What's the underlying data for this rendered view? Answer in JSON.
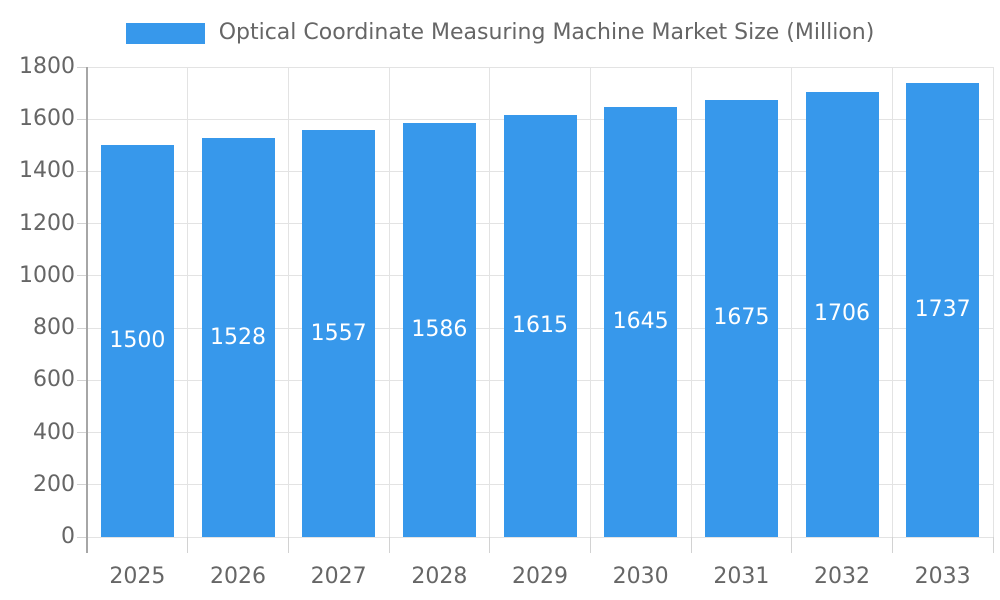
{
  "chart_data": {
    "type": "bar",
    "title": "Optical Coordinate Measuring Machine Market Size (Million)",
    "legend_position": "top",
    "categories": [
      "2025",
      "2026",
      "2027",
      "2028",
      "2029",
      "2030",
      "2031",
      "2032",
      "2033"
    ],
    "values": [
      1500,
      1528,
      1557,
      1586,
      1615,
      1645,
      1675,
      1706,
      1737
    ],
    "value_labels": [
      "1500",
      "1528",
      "1557",
      "1586",
      "1615",
      "1645",
      "1675",
      "1706",
      "1737"
    ],
    "value_label_position": "inside-middle",
    "xlabel": "",
    "ylabel": "",
    "ylim": [
      0,
      1800
    ],
    "ytick_step": 200,
    "ytick_labels": [
      "0",
      "200",
      "400",
      "600",
      "800",
      "1000",
      "1200",
      "1400",
      "1600",
      "1800"
    ],
    "grid": true,
    "colors": {
      "bar": "#3798EB",
      "value_label_text": "#ffffff",
      "axis_text": "#666666",
      "legend_text": "#666666",
      "gridline": "#e3e3e3",
      "tick": "#d2d2d2",
      "axis_line": "#a6a6a6",
      "background": "#ffffff"
    }
  }
}
